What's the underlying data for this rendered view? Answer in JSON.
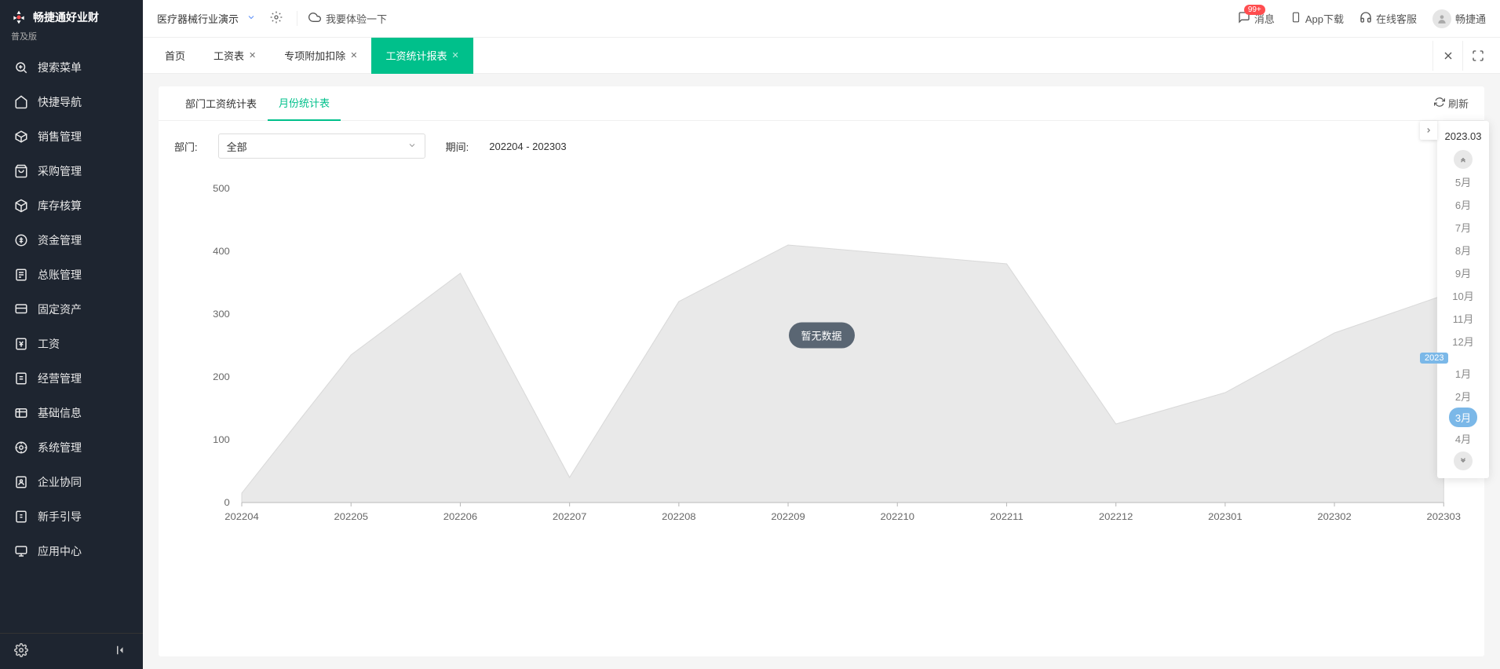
{
  "brand": {
    "name": "畅捷通好业财",
    "version": "普及版"
  },
  "sidebar": {
    "items": [
      {
        "icon": "search",
        "label": "搜索菜单"
      },
      {
        "icon": "home",
        "label": "快捷导航"
      },
      {
        "icon": "cube",
        "label": "销售管理"
      },
      {
        "icon": "bag",
        "label": "采购管理"
      },
      {
        "icon": "box",
        "label": "库存核算"
      },
      {
        "icon": "coin",
        "label": "资金管理"
      },
      {
        "icon": "ledger",
        "label": "总账管理"
      },
      {
        "icon": "asset",
        "label": "固定资产"
      },
      {
        "icon": "wage",
        "label": "工资"
      },
      {
        "icon": "biz",
        "label": "经营管理"
      },
      {
        "icon": "info",
        "label": "基础信息"
      },
      {
        "icon": "sys",
        "label": "系统管理"
      },
      {
        "icon": "collab",
        "label": "企业协同"
      },
      {
        "icon": "guide",
        "label": "新手引导"
      },
      {
        "icon": "apps",
        "label": "应用中心"
      }
    ]
  },
  "topbar": {
    "project": "医疗器械行业演示",
    "try_text": "我要体验一下",
    "badge": "99+",
    "msg": "消息",
    "app": "App下载",
    "service": "在线客服",
    "user": "畅捷通"
  },
  "tabs": {
    "items": [
      {
        "label": "首页",
        "closable": false,
        "active": false
      },
      {
        "label": "工资表",
        "closable": true,
        "active": false
      },
      {
        "label": "专项附加扣除",
        "closable": true,
        "active": false
      },
      {
        "label": "工资统计报表",
        "closable": true,
        "active": true
      }
    ]
  },
  "subtabs": {
    "items": [
      {
        "label": "部门工资统计表",
        "active": false
      },
      {
        "label": "月份统计表",
        "active": true
      }
    ],
    "refresh": "刷新"
  },
  "filter": {
    "dept_label": "部门:",
    "dept_value": "全部",
    "period_label": "期间:",
    "period_value": "202204 - 202303"
  },
  "chart": {
    "type": "area",
    "categories": [
      "202204",
      "202205",
      "202206",
      "202207",
      "202208",
      "202209",
      "202210",
      "202211",
      "202212",
      "202301",
      "202302",
      "202303"
    ],
    "values": [
      15,
      235,
      365,
      40,
      320,
      410,
      395,
      380,
      125,
      175,
      270,
      330
    ],
    "ylim": [
      0,
      500
    ],
    "ytick_step": 100,
    "line_color": "#d9d9d9",
    "fill_color": "#e9e9e9",
    "axis_color": "#bbbbbb",
    "text_color": "#666666",
    "background": "#ffffff",
    "no_data_text": "暂无数据"
  },
  "month_picker": {
    "title": "2023.03",
    "year_chip": "2023",
    "months": [
      "5月",
      "6月",
      "7月",
      "8月",
      "9月",
      "10月",
      "11月",
      "12月",
      "1月",
      "2月",
      "3月",
      "4月"
    ],
    "active_index": 10
  }
}
